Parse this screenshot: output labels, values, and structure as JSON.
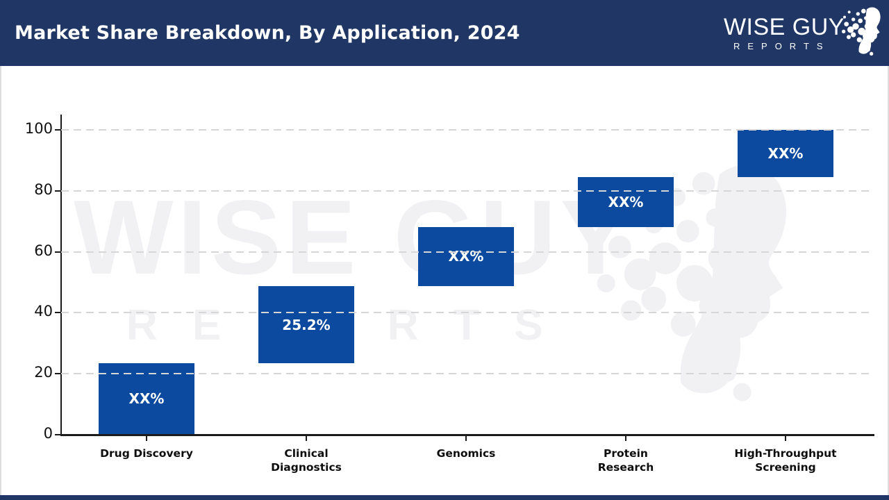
{
  "header": {
    "title": "Market Share Breakdown, By Application, 2024",
    "logo": {
      "line1": "WISE GUY",
      "line2": "REPORTS"
    }
  },
  "watermark": {
    "line1": "WISE GUY",
    "line2": "REPORTS"
  },
  "colors": {
    "header_bg": "#203766",
    "footer_bg": "#203766",
    "title_text": "#ffffff",
    "bar": "#0b4a9e",
    "bar_label": "#ffffff",
    "axis": "#1b1b1b",
    "gridline": "#d6d6d6",
    "watermark": "#f1f1f3",
    "frame": "#dcdcdc"
  },
  "chart_data": {
    "type": "bar",
    "subtype": "waterfall",
    "title": "Market Share Breakdown, By Application, 2024",
    "categories": [
      "Drug Discovery",
      "Clinical Diagnostics",
      "Genomics",
      "Protein Research",
      "High-Throughput Screening"
    ],
    "bars": [
      {
        "category": "Drug Discovery",
        "start": 0,
        "end": 23.5,
        "label": "XX%"
      },
      {
        "category": "Clinical Diagnostics",
        "start": 23.5,
        "end": 48.7,
        "label": "25.2%",
        "value": 25.2
      },
      {
        "category": "Genomics",
        "start": 48.7,
        "end": 68.2,
        "label": "XX%"
      },
      {
        "category": "Protein Research",
        "start": 68.2,
        "end": 84.6,
        "label": "XX%"
      },
      {
        "category": "High-Throughput Screening",
        "start": 84.6,
        "end": 100,
        "label": "XX%"
      }
    ],
    "yticks": [
      0,
      20,
      40,
      60,
      80,
      100
    ],
    "ylim": [
      0,
      105
    ],
    "xlabel": "",
    "ylabel": "",
    "grid": "horizontal-dashed",
    "legend": "none"
  }
}
